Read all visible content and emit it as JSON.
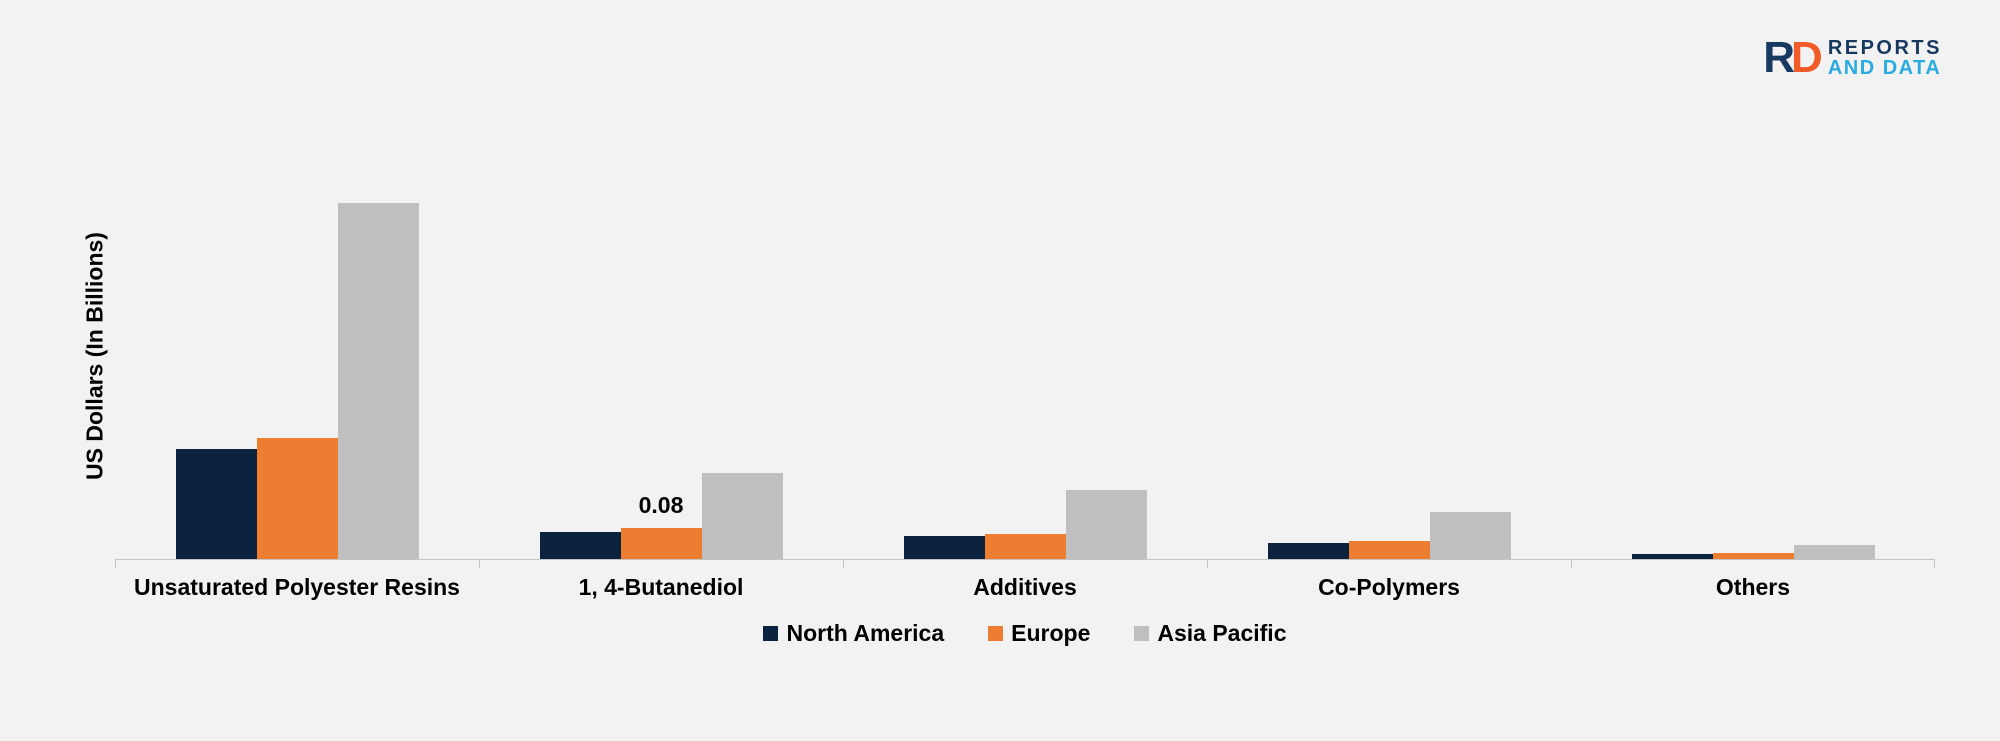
{
  "page": {
    "background": "#f2f2f2"
  },
  "logo": {
    "monogram_r": "R",
    "monogram_d": "D",
    "line1": "REPORTS",
    "line2": "AND DATA",
    "navy": "#17395f",
    "orange": "#f15a29",
    "cyan": "#29abe2"
  },
  "chart_data": {
    "type": "bar",
    "title": "",
    "xlabel": "",
    "ylabel": "US Dollars (In Billions)",
    "ylim": [
      0,
      0.92
    ],
    "grid": false,
    "legend_position": "bottom",
    "axis_color": "#c4c4c4",
    "categories": [
      "Unsaturated Polyester Resins",
      "1, 4-Butanediol",
      "Additives",
      "Co-Polymers",
      "Others"
    ],
    "series": [
      {
        "name": "North America",
        "color": "#0c2340",
        "values": [
          0.28,
          0.07,
          0.06,
          0.042,
          0.013
        ]
      },
      {
        "name": "Europe",
        "color": "#ed7d31",
        "values": [
          0.31,
          0.08,
          0.065,
          0.045,
          0.015
        ]
      },
      {
        "name": "Asia Pacific",
        "color": "#bfbfbf",
        "values": [
          0.91,
          0.22,
          0.177,
          0.12,
          0.035
        ]
      }
    ],
    "annotations": [
      {
        "series": "Europe",
        "series_index": 1,
        "category_index": 1,
        "text": "0.08"
      }
    ]
  }
}
